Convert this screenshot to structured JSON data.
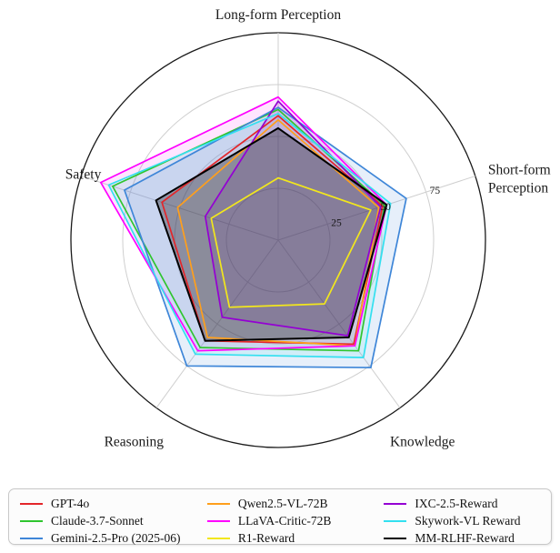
{
  "figure": {
    "background": "#ffffff",
    "grid_color": "#cfcfcf",
    "outer_ring_color": "#1a1a1a"
  },
  "chart_data": {
    "type": "radar",
    "title": "",
    "categories": [
      "Long-form Perception",
      "Short-form Perception",
      "Knowledge",
      "Reasoning",
      "Safety"
    ],
    "r_ticks": [
      25,
      50,
      75
    ],
    "r_max": 100,
    "grid": true,
    "legend_position": "bottom",
    "series": [
      {
        "name": "GPT-4o",
        "color": "#e3262a",
        "fill_opacity": 0.06,
        "values": [
          60,
          53,
          62,
          60,
          59
        ]
      },
      {
        "name": "Claude-3.7-Sonnet",
        "color": "#2fc52f",
        "fill_opacity": 0.06,
        "values": [
          63,
          54,
          66,
          64,
          84
        ]
      },
      {
        "name": "Gemini-2.5-Pro (2025-06)",
        "color": "#3e86d8",
        "fill_opacity": 0.13,
        "values": [
          64,
          65,
          76,
          75,
          78
        ]
      },
      {
        "name": "Qwen2.5-VL-72B",
        "color": "#ff9f1c",
        "fill_opacity": 0.05,
        "values": [
          58,
          51,
          63,
          58,
          51
        ]
      },
      {
        "name": "LLaVA-Critic-72B",
        "color": "#ff00ff",
        "fill_opacity": 0.1,
        "values": [
          69,
          55,
          63,
          66,
          90
        ]
      },
      {
        "name": "R1-Reward",
        "color": "#f2e71c",
        "fill_opacity": 0.0,
        "values": [
          30,
          47,
          38,
          40,
          34
        ]
      },
      {
        "name": "IXC-2.5-Reward",
        "color": "#9400d3",
        "fill_opacity": 0.12,
        "values": [
          67,
          52,
          57,
          46,
          37
        ]
      },
      {
        "name": "Skywork-VL Reward",
        "color": "#33e0f0",
        "fill_opacity": 0.12,
        "values": [
          61,
          57,
          70,
          68,
          86
        ]
      },
      {
        "name": "MM-RLHF-Reward",
        "color": "#000000",
        "fill_opacity": 0.3,
        "values": [
          54,
          55,
          58,
          60,
          62
        ]
      }
    ]
  }
}
